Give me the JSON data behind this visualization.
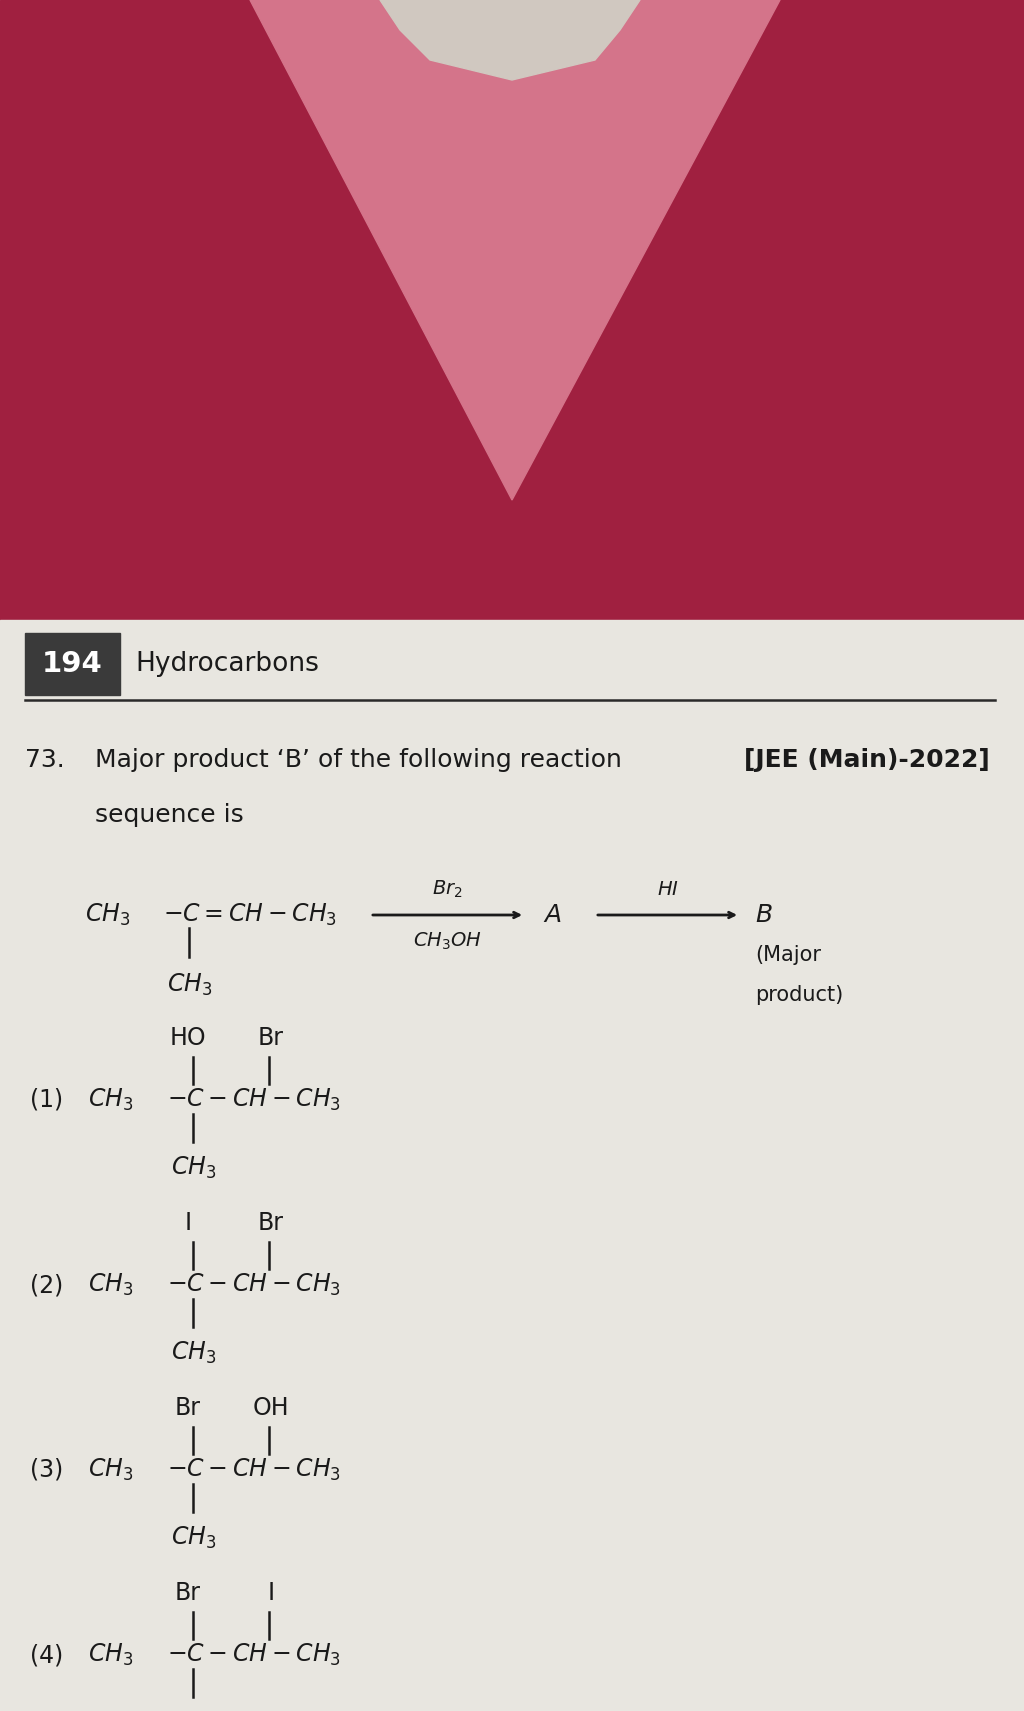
{
  "bg_page": "#e8e6e0",
  "header_num": "194",
  "header_title": "Hydrocarbons",
  "question_num": "73.",
  "question_line1": "Major product ‘B’ of the following reaction",
  "question_line2": "sequence is",
  "question_ref": "[JEE (Main)-2022]",
  "font_color": "#1a1a1a",
  "header_bg": "#3a3a3a",
  "fig_width": 10.24,
  "fig_height": 17.11,
  "dpi": 100
}
